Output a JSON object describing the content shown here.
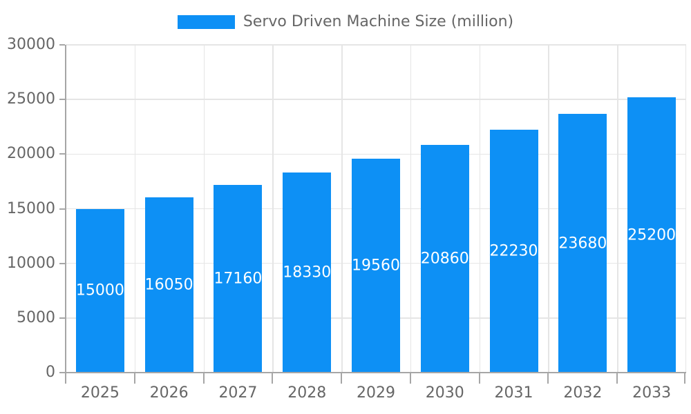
{
  "chart_data": {
    "type": "bar",
    "title": "Servo Driven Machine Size (million)",
    "legend_label": "Servo Driven Machine Size (million)",
    "legend_position": "top",
    "categories": [
      "2025",
      "2026",
      "2027",
      "2028",
      "2029",
      "2030",
      "2031",
      "2032",
      "2033"
    ],
    "values": [
      15000,
      16050,
      17160,
      18330,
      19560,
      20860,
      22230,
      23680,
      25200
    ],
    "value_labels": [
      "15000",
      "16050",
      "17160",
      "18330",
      "19560",
      "20860",
      "22230",
      "23680",
      "25200"
    ],
    "xlabel": "",
    "ylabel": "",
    "ylim": [
      0,
      30000
    ],
    "yticks": [
      0,
      5000,
      10000,
      15000,
      20000,
      25000,
      30000
    ],
    "ytick_labels": [
      "0",
      "5000",
      "10000",
      "15000",
      "20000",
      "25000",
      "30000"
    ],
    "grid": true,
    "colors": {
      "bar": "#0d90f5",
      "grid": "#e5e5e5",
      "axis": "#a6a6a6",
      "tick_text": "#666666",
      "bar_label": "#ffffff",
      "background": "#ffffff"
    }
  }
}
